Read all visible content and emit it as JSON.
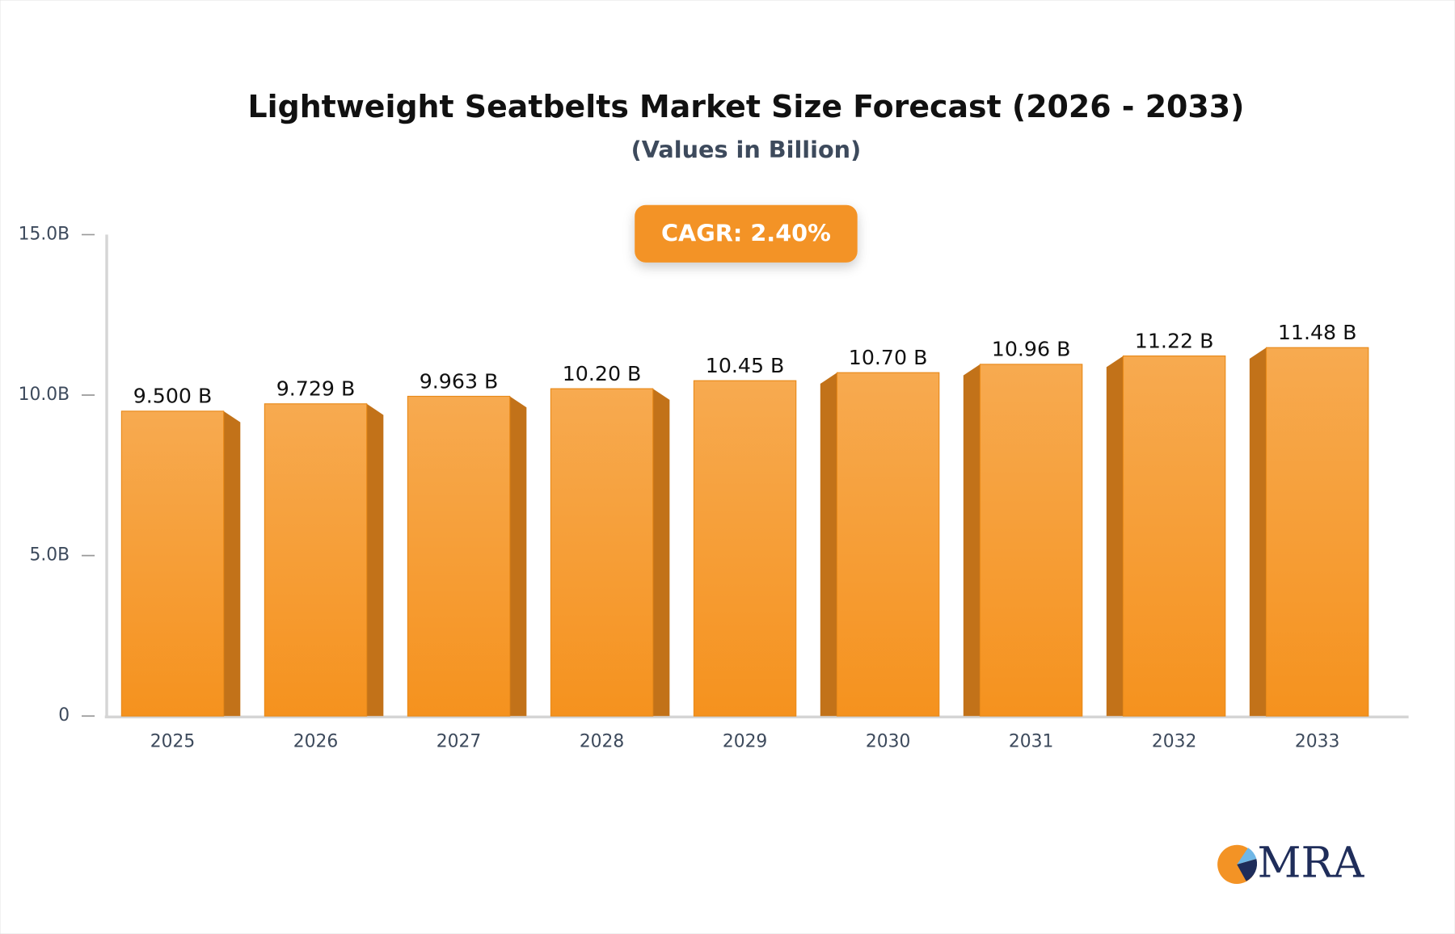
{
  "chart_data": {
    "type": "bar3d",
    "title": "Lightweight Seatbelts Market Size Forecast (2026 - 2033)",
    "subtitle": "(Values in Billion)",
    "annotation": "CAGR: 2.40%",
    "logo": "MRA",
    "categories": [
      "2025",
      "2026",
      "2027",
      "2028",
      "2029",
      "2030",
      "2031",
      "2032",
      "2033"
    ],
    "values": [
      9.5,
      9.729,
      9.963,
      10.2,
      10.45,
      10.7,
      10.96,
      11.22,
      11.48
    ],
    "value_labels": [
      "9.500 B",
      "9.729 B",
      "9.963 B",
      "10.20 B",
      "10.45 B",
      "10.70 B",
      "10.96 B",
      "11.22 B",
      "11.48 B"
    ],
    "color": "#f5961f",
    "ylim": [
      0,
      15
    ],
    "yticks": [
      0,
      {
        "value": 5,
        "label": "5.0B"
      },
      {
        "value": 10,
        "label": "10.0B"
      },
      {
        "value": 15,
        "label": "15.0B"
      }
    ],
    "grid": false
  }
}
